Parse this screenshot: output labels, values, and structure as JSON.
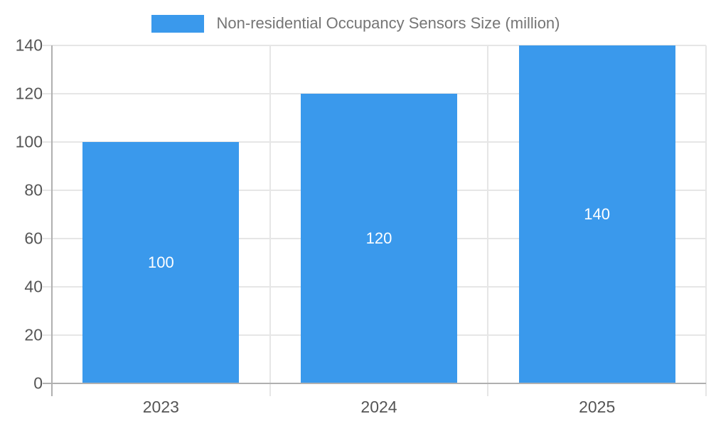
{
  "legend": {
    "label": "Non-residential Occupancy Sensors Size (million)"
  },
  "colors": {
    "bar": "#3a99ec",
    "grid": "#e6e6e6",
    "axis": "#b0b0b0",
    "tick_label": "#555555",
    "legend_text": "#757575",
    "data_label": "#ffffff",
    "background": "#ffffff"
  },
  "chart_data": {
    "type": "bar",
    "title": "Non-residential Occupancy Sensors Size (million)",
    "categories": [
      "2023",
      "2024",
      "2025"
    ],
    "values": [
      100,
      120,
      140
    ],
    "data_labels": [
      "100",
      "120",
      "140"
    ],
    "xlabel": "",
    "ylabel": "",
    "ylim": [
      0,
      140
    ],
    "yticks": [
      0,
      20,
      40,
      60,
      80,
      100,
      120,
      140
    ],
    "grid": true,
    "legend_position": "top"
  }
}
